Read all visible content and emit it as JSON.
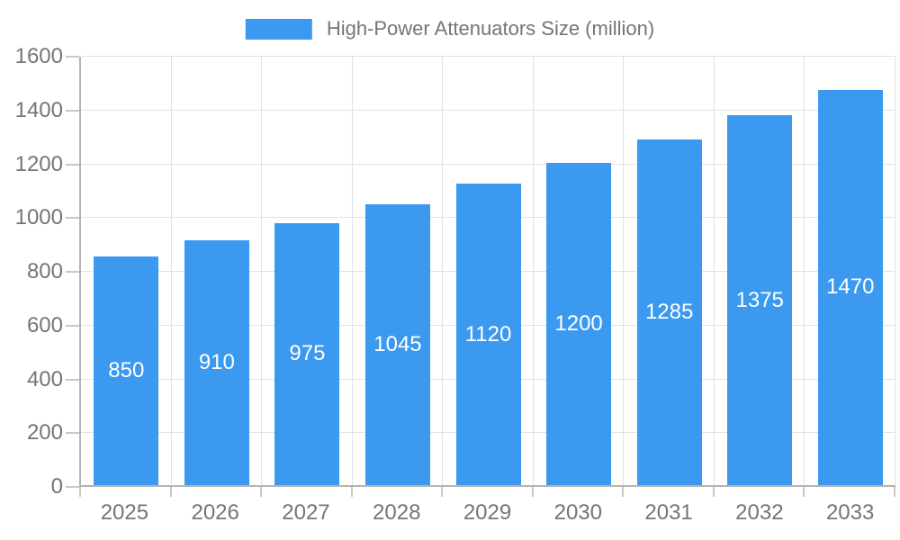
{
  "legend": {
    "label": "High-Power Attenuators Size (million)"
  },
  "chart_data": {
    "type": "bar",
    "title": "High-Power Attenuators Size (million)",
    "categories": [
      "2025",
      "2026",
      "2027",
      "2028",
      "2029",
      "2030",
      "2031",
      "2032",
      "2033"
    ],
    "values": [
      850,
      910,
      975,
      1045,
      1120,
      1200,
      1285,
      1375,
      1470
    ],
    "series": [
      {
        "name": "High-Power Attenuators Size (million)",
        "values": [
          850,
          910,
          975,
          1045,
          1120,
          1200,
          1285,
          1375,
          1470
        ]
      }
    ],
    "xlabel": "",
    "ylabel": "",
    "ylim": [
      0,
      1600
    ],
    "ytick_step": 200,
    "yticks": [
      0,
      200,
      400,
      600,
      800,
      1000,
      1200,
      1400,
      1600
    ],
    "grid": true,
    "legend_position": "top-center",
    "value_labels": "inside-center",
    "colors": {
      "bar": "#3b99f0",
      "grid": "#e2e2e2",
      "axis": "#b3b3b3",
      "tick": "#c9c9c9",
      "text": "#757575",
      "value_label": "#ffffff"
    }
  }
}
